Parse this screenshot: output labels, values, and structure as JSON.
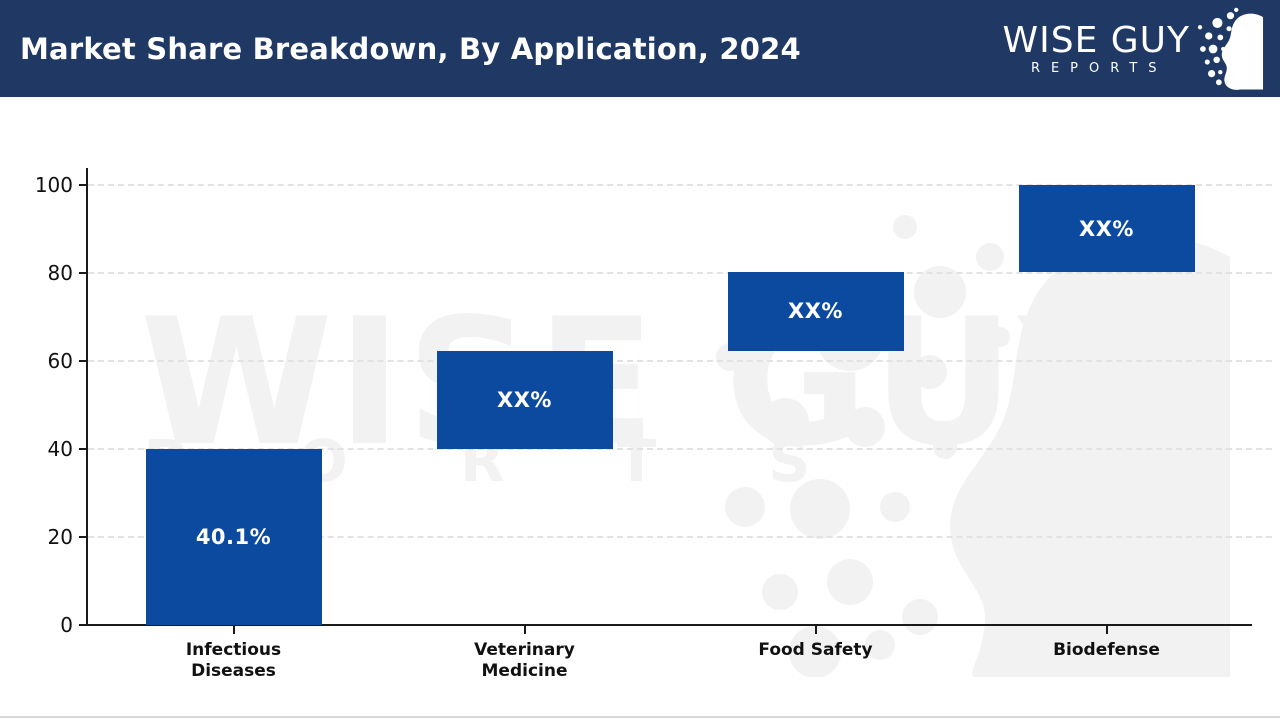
{
  "header": {
    "title": "Market Share Breakdown, By Application, 2024",
    "logo": {
      "line1": "WISE GUY",
      "line2": "REPORTS"
    }
  },
  "watermark": {
    "line1": "WISE GUY",
    "line2": "P O R T S"
  },
  "colors": {
    "header_bg": "#1f3864",
    "bar": "#0b4a9e",
    "bar_label": "#ffffff",
    "grid": "#e2e2e2",
    "axis": "#1a1a1a",
    "watermark": "#f2f2f2"
  },
  "chart_data": {
    "type": "bar",
    "subtype": "waterfall",
    "title": "Market Share Breakdown, By Application, 2024",
    "xlabel": "",
    "ylabel": "",
    "ylim": [
      0,
      100
    ],
    "yticks": [
      0,
      20,
      40,
      60,
      80,
      100
    ],
    "grid": "horizontal-dashed",
    "categories": [
      "Infectious Diseases",
      "Veterinary Medicine",
      "Food Safety",
      "Biodefense"
    ],
    "segments": [
      {
        "category_lines": [
          "Infectious",
          "Diseases"
        ],
        "start": 0,
        "end": 40.1,
        "label": "40.1%"
      },
      {
        "category_lines": [
          "Veterinary",
          "Medicine"
        ],
        "start": 40.1,
        "end": 62.3,
        "label": "XX%"
      },
      {
        "category_lines": [
          "Food Safety"
        ],
        "start": 62.3,
        "end": 80.2,
        "label": "XX%"
      },
      {
        "category_lines": [
          "Biodefense"
        ],
        "start": 80.2,
        "end": 100,
        "label": "XX%"
      }
    ]
  }
}
